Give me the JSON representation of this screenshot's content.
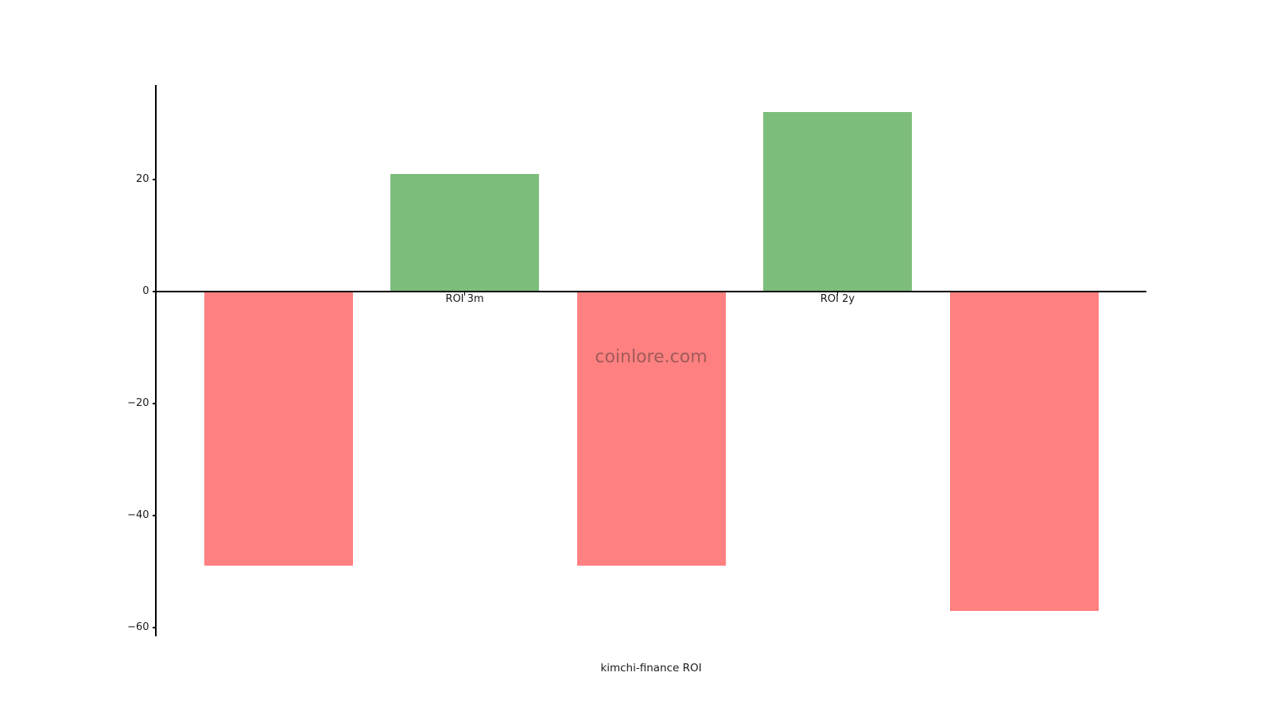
{
  "figure": {
    "title": "kimchi-finance ROI",
    "watermark": "coinlore.com",
    "background": "#ffffff",
    "text_color": "#1a1a1a"
  },
  "chart_data": {
    "type": "bar",
    "title": "kimchi-finance ROI",
    "xlabel": "",
    "ylabel": "",
    "grid": false,
    "legend": "none",
    "categories": [
      "",
      "ROI 3m",
      "",
      "ROI 2y",
      ""
    ],
    "values": [
      -49,
      21,
      -49,
      32,
      -57
    ],
    "bar_colors": [
      "#ff8080",
      "#7dbe7d",
      "#ff8080",
      "#7dbe7d",
      "#ff8080"
    ],
    "positive_color": "#7dbe7d",
    "negative_color": "#ff8080",
    "y_ticks": [
      {
        "label": "20",
        "value": 20
      },
      {
        "label": "0",
        "value": 0
      },
      {
        "label": "−20",
        "value": -20
      },
      {
        "label": "−40",
        "value": -40
      },
      {
        "label": "−60",
        "value": -60
      }
    ],
    "ylim": [
      -62,
      37
    ],
    "zero_baseline": true,
    "note_hidden_labels": "x tick labels of negative bars are covered by the bars themselves"
  }
}
